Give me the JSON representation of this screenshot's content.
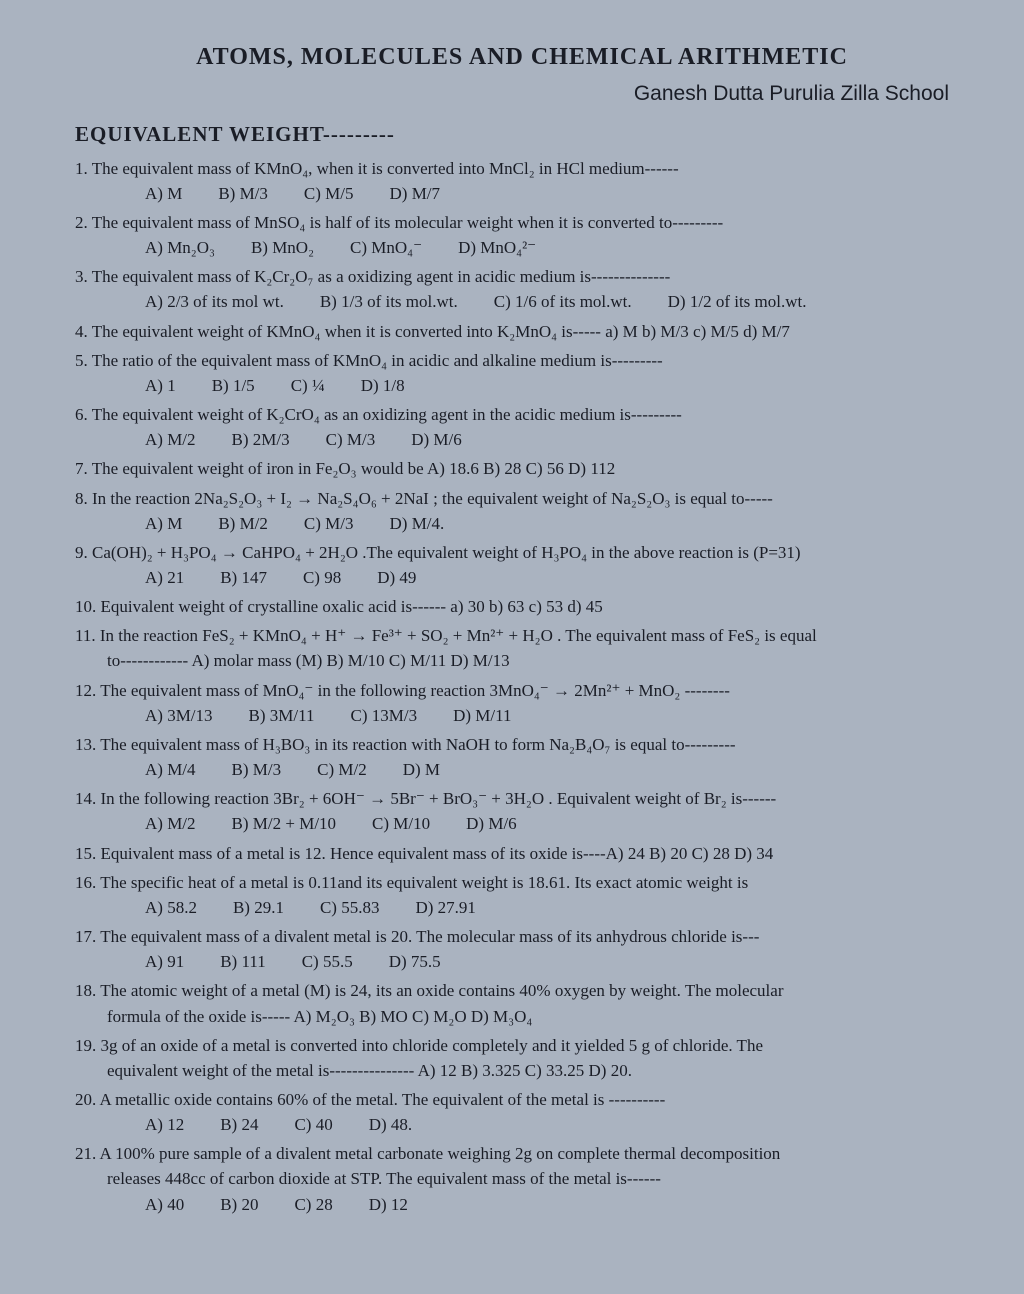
{
  "header": {
    "title": "ATOMS, MOLECULES AND CHEMICAL ARITHMETIC",
    "subtitle": "Ganesh Dutta Purulia Zilla School",
    "section": "EQUIVALENT WEIGHT---------"
  },
  "questions": [
    {
      "n": "1.",
      "t": "The equivalent mass of KMnO₄, when it is converted into MnCl₂ in HCl medium------",
      "opts": [
        "A) M",
        "B) M/3",
        "C) M/5",
        "D) M/7"
      ]
    },
    {
      "n": "2.",
      "t": "The equivalent mass of MnSO₄ is half of its molecular weight when it is converted to---------",
      "opts": [
        "A) Mn₂O₃",
        "B) MnO₂",
        "C) MnO₄⁻",
        "D) MnO₄²⁻"
      ]
    },
    {
      "n": "3.",
      "t": "The equivalent mass of K₂Cr₂O₇ as a oxidizing agent in acidic medium is--------------",
      "opts": [
        "A) 2/3 of its mol wt.",
        "B) 1/3 of its mol.wt.",
        "C) 1/6 of its mol.wt.",
        "D) 1/2 of its mol.wt."
      ]
    },
    {
      "n": "4.",
      "t": "The equivalent weight of KMnO₄ when it is converted into K₂MnO₄ is----- a) M  b) M/3  c) M/5  d) M/7"
    },
    {
      "n": "5.",
      "t": "The ratio of the equivalent mass of KMnO₄ in acidic and alkaline medium is---------",
      "opts": [
        "A) 1",
        "B) 1/5",
        "C) ¼",
        "D) 1/8"
      ]
    },
    {
      "n": "6.",
      "t": "The equivalent weight of K₂CrO₄ as an oxidizing agent in the acidic medium is---------",
      "opts": [
        "A) M/2",
        "B) 2M/3",
        "C) M/3",
        "D) M/6"
      ]
    },
    {
      "n": "7.",
      "t": "The equivalent weight of iron in Fe₂O₃ would be  A) 18.6  B) 28  C) 56  D) 112"
    },
    {
      "n": "8.",
      "t": "In the reaction 2Na₂S₂O₃ + I₂ → Na₂S₄O₆ + 2NaI ; the equivalent weight of Na₂S₂O₃ is equal to-----",
      "opts": [
        "A) M",
        "B) M/2",
        "C) M/3",
        "D) M/4."
      ]
    },
    {
      "n": "9.",
      "t": "Ca(OH)₂ + H₃PO₄ → CaHPO₄ + 2H₂O .The equivalent weight of H₃PO₄ in the above reaction is (P=31)",
      "opts": [
        "A) 21",
        "B) 147",
        "C) 98",
        "D) 49"
      ]
    },
    {
      "n": "10.",
      "t": "Equivalent weight of crystalline oxalic acid is------   a) 30    b) 63    c) 53    d) 45"
    },
    {
      "n": "11.",
      "t": "In the reaction FeS₂ + KMnO₄ + H⁺ → Fe³⁺ + SO₂ + Mn²⁺ + H₂O . The equivalent mass of FeS₂ is equal",
      "cont": "to------------    A) molar mass (M)      B) M/10      C) M/11      D) M/13"
    },
    {
      "n": "12.",
      "t": "The equivalent mass of MnO₄⁻ in the following reaction 3MnO₄⁻ → 2Mn²⁺ + MnO₂ --------",
      "opts": [
        "A) 3M/13",
        "B) 3M/11",
        "C) 13M/3",
        "D) M/11"
      ]
    },
    {
      "n": "13.",
      "t": "The equivalent mass of H₃BO₃ in its reaction with NaOH to form Na₂B₄O₇ is equal to---------",
      "opts": [
        "A) M/4",
        "B) M/3",
        "C) M/2",
        "D) M"
      ]
    },
    {
      "n": "14.",
      "t": "In the following reaction 3Br₂ + 6OH⁻ → 5Br⁻ + BrO₃⁻ + 3H₂O . Equivalent weight of Br₂ is------",
      "opts": [
        "A) M/2",
        "B) M/2 + M/10",
        "C) M/10",
        "D) M/6"
      ]
    },
    {
      "n": "15.",
      "t": "Equivalent mass of a metal is 12. Hence equivalent mass of its oxide is----A) 24  B) 20  C) 28  D) 34"
    },
    {
      "n": "16.",
      "t": "The specific heat of a metal is 0.11and its equivalent weight is 18.61. Its exact atomic weight is",
      "opts": [
        "A) 58.2",
        "B) 29.1",
        "C) 55.83",
        "D) 27.91"
      ]
    },
    {
      "n": "17.",
      "t": "The equivalent mass of a divalent metal is 20. The molecular mass of its anhydrous chloride is---",
      "opts": [
        "A) 91",
        "B) 111",
        "C) 55.5",
        "D) 75.5"
      ]
    },
    {
      "n": "18.",
      "t": "The atomic weight of a metal (M) is 24, its an oxide contains 40% oxygen by weight. The molecular",
      "cont": "formula of the oxide is-----    A) M₂O₃      B) MO      C) M₂O      D) M₃O₄"
    },
    {
      "n": "19.",
      "t": "3g of an oxide of a metal is converted into chloride completely and it yielded 5 g of chloride. The",
      "cont": "equivalent weight of the metal is---------------  A) 12      B) 3.325      C) 33.25      D) 20."
    },
    {
      "n": "20.",
      "t": "A metallic oxide contains 60% of the metal. The equivalent of the metal is ----------",
      "opts": [
        "A) 12",
        "B) 24",
        "C) 40",
        "D) 48."
      ]
    },
    {
      "n": "21.",
      "t": "A 100% pure sample of a divalent metal carbonate weighing 2g on complete thermal decomposition",
      "cont": "releases 448cc of carbon dioxide at STP. The equivalent mass of the metal is------",
      "opts": [
        "A) 40",
        "B) 20",
        "C) 28",
        "D) 12"
      ]
    }
  ]
}
